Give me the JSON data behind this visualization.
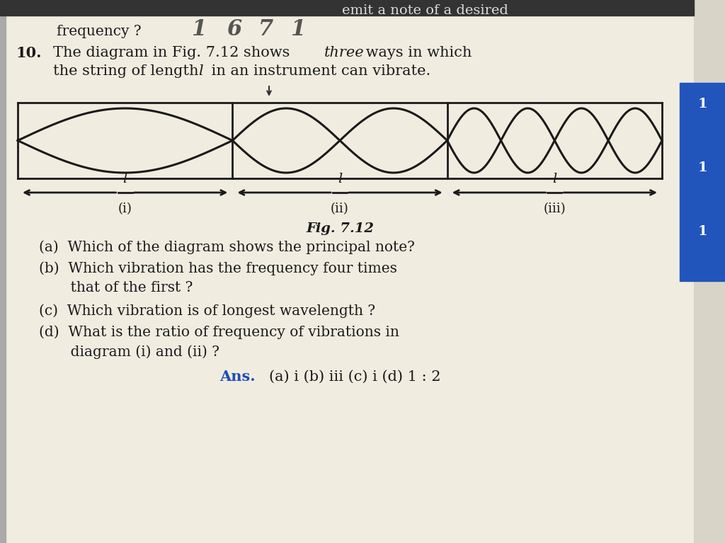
{
  "bg_color": "#d8d4c8",
  "page_color": "#f0ece0",
  "text_color": "#1a1a1a",
  "line_color": "#1a1a1a",
  "blue_bar_color": "#2255bb",
  "ans_color": "#1e4db7",
  "fig_label": "Fig. 7.12",
  "label_i": "(i)",
  "label_ii": "(ii)",
  "label_iii": "(iii)",
  "qa": "(a)  Which of the diagram shows the principal note?",
  "qb1": "(b)  Which vibration has the frequency four times",
  "qb2": "       that of the first ?",
  "qc": "(c)  Which vibration is of longest wavelength ?",
  "qd1": "(d)  What is the ratio of frequency of vibrations in",
  "qd2": "       diagram (i) and (ii) ?",
  "ans_label": "Ans.",
  "ans_text": "(a) i (b) iii (c) i (d) 1 : 2"
}
